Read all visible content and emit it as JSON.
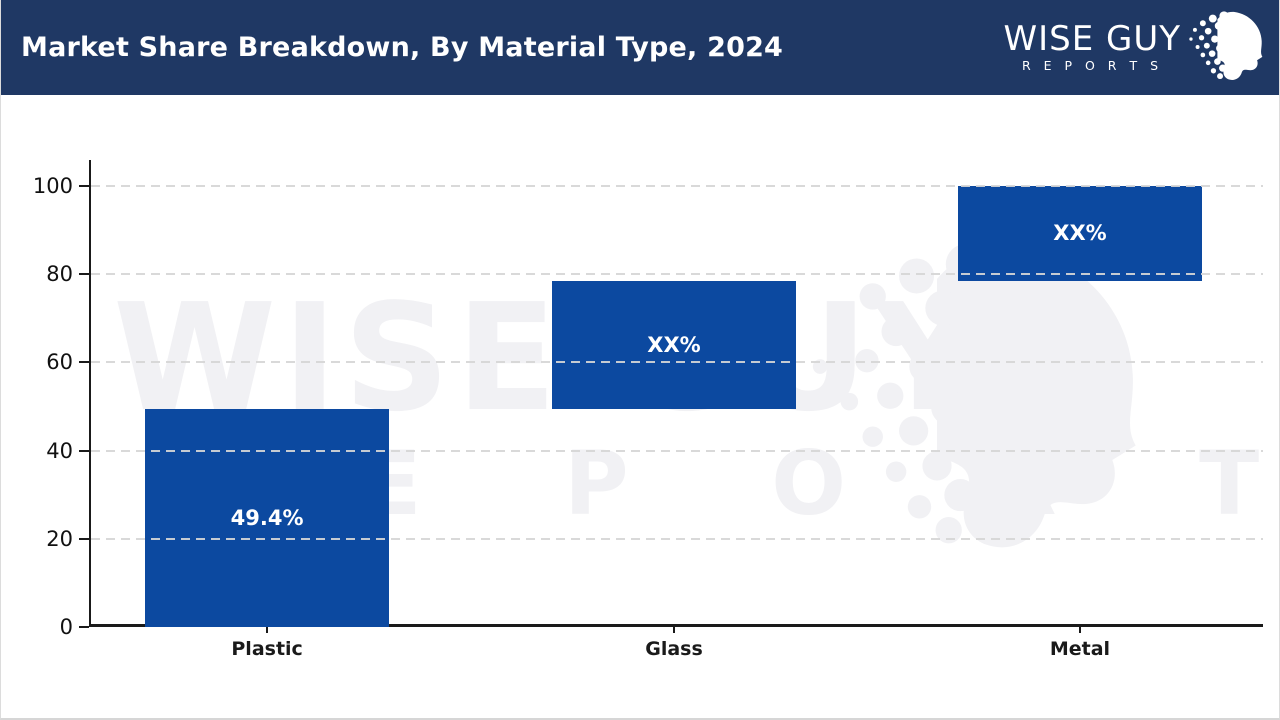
{
  "header": {
    "title": "Market Share Breakdown, By Material Type, 2024",
    "logo": {
      "line1": "WISE GUY",
      "line2": "R E P O R T S"
    }
  },
  "watermark": {
    "line1": "WISE GUY",
    "line2": "R E P O R T S"
  },
  "chart_data": {
    "type": "bar",
    "variant": "waterfall-floating-bars",
    "title": "Market Share Breakdown, By Material Type, 2024",
    "categories": [
      "Plastic",
      "Glass",
      "Metal"
    ],
    "bars": [
      {
        "category": "Plastic",
        "start": 0,
        "end": 49.4,
        "value_label": "49.4%"
      },
      {
        "category": "Glass",
        "start": 49.4,
        "end": 78.5,
        "value_label": "XX%"
      },
      {
        "category": "Metal",
        "start": 78.5,
        "end": 100,
        "value_label": "XX%"
      }
    ],
    "yticks": [
      0,
      20,
      40,
      60,
      80,
      100
    ],
    "ylim": [
      0,
      105.9
    ],
    "xlabel": "",
    "ylabel": "",
    "grid": "horizontal-dashed",
    "legend": "none"
  },
  "colors": {
    "header_bg": "#1f3864",
    "bar_color": "#0c49a0",
    "bar_label_color": "#ffffff",
    "grid_color": "#d6d6d6",
    "axis_color": "#1a1a1a",
    "watermark_color": "#f1f1f4"
  }
}
